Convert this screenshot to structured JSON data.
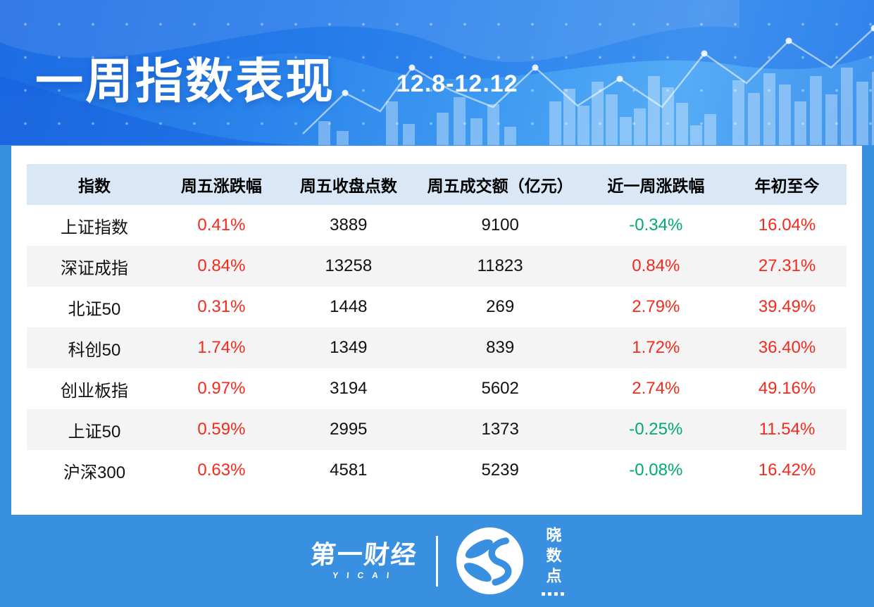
{
  "banner": {
    "title": "一周指数表现",
    "date_range": "12.8-12.12"
  },
  "chart_data": {
    "type": "table",
    "title": "一周指数表现",
    "subtitle": "12.8-12.12",
    "columns": [
      {
        "key": "name",
        "label": "指数"
      },
      {
        "key": "fri_change",
        "label": "周五涨跌幅"
      },
      {
        "key": "fri_close",
        "label": "周五收盘点数"
      },
      {
        "key": "fri_turnover",
        "label": "周五成交额（亿元）"
      },
      {
        "key": "week_change",
        "label": "近一周涨跌幅"
      },
      {
        "key": "ytd",
        "label": "年初至今"
      }
    ],
    "rows": [
      {
        "name": "上证指数",
        "fri_change": "0.41%",
        "fri_change_color": "red",
        "fri_close": "3889",
        "fri_turnover": "9100",
        "week_change": "-0.34%",
        "week_change_color": "green",
        "ytd": "16.04%",
        "ytd_color": "red"
      },
      {
        "name": "深证成指",
        "fri_change": "0.84%",
        "fri_change_color": "red",
        "fri_close": "13258",
        "fri_turnover": "11823",
        "week_change": "0.84%",
        "week_change_color": "red",
        "ytd": "27.31%",
        "ytd_color": "red"
      },
      {
        "name": "北证50",
        "fri_change": "0.31%",
        "fri_change_color": "red",
        "fri_close": "1448",
        "fri_turnover": "269",
        "week_change": "2.79%",
        "week_change_color": "red",
        "ytd": "39.49%",
        "ytd_color": "red"
      },
      {
        "name": "科创50",
        "fri_change": "1.74%",
        "fri_change_color": "red",
        "fri_close": "1349",
        "fri_turnover": "839",
        "week_change": "1.72%",
        "week_change_color": "red",
        "ytd": "36.40%",
        "ytd_color": "red"
      },
      {
        "name": "创业板指",
        "fri_change": "0.97%",
        "fri_change_color": "red",
        "fri_close": "3194",
        "fri_turnover": "5602",
        "week_change": "2.74%",
        "week_change_color": "red",
        "ytd": "49.16%",
        "ytd_color": "red"
      },
      {
        "name": "上证50",
        "fri_change": "0.59%",
        "fri_change_color": "red",
        "fri_close": "2995",
        "fri_turnover": "1373",
        "week_change": "-0.25%",
        "week_change_color": "green",
        "ytd": "11.54%",
        "ytd_color": "red"
      },
      {
        "name": "沪深300",
        "fri_change": "0.63%",
        "fri_change_color": "red",
        "fri_close": "4581",
        "fri_turnover": "5239",
        "week_change": "-0.08%",
        "week_change_color": "green",
        "ytd": "16.42%",
        "ytd_color": "red"
      }
    ]
  },
  "footer": {
    "brand_name": "第一财经",
    "brand_sub": "YICAI",
    "logo_label": "晓数点"
  },
  "colors": {
    "up_red": "#f52a1c",
    "down_green": "#00ab6e",
    "page_blue": "#3a90e0",
    "header_band_blue": "#d9e7f6",
    "alt_row_gray": "#f4f4f5"
  }
}
